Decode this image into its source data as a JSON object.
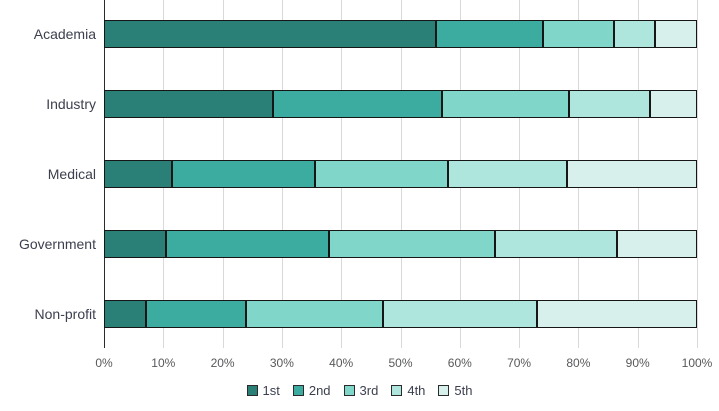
{
  "chart_data": {
    "type": "bar",
    "orientation": "horizontal",
    "stacked": true,
    "title": "",
    "categories": [
      "Academia",
      "Industry",
      "Medical",
      "Government",
      "Non-profit"
    ],
    "series": [
      {
        "name": "1st",
        "color": "#2a7f77",
        "values": [
          56,
          28.5,
          11.5,
          10.5,
          7
        ]
      },
      {
        "name": "2nd",
        "color": "#3daca0",
        "values": [
          18,
          28.5,
          24,
          27.5,
          17
        ]
      },
      {
        "name": "3rd",
        "color": "#7fd6c9",
        "values": [
          12,
          21.5,
          22.5,
          28,
          23
        ]
      },
      {
        "name": "4th",
        "color": "#aee5dd",
        "values": [
          7,
          13.5,
          20,
          20.5,
          26
        ]
      },
      {
        "name": "5th",
        "color": "#d7f0eb",
        "values": [
          7,
          8,
          22,
          13.5,
          27
        ]
      }
    ],
    "x_tick_labels": [
      "0%",
      "10%",
      "20%",
      "30%",
      "40%",
      "50%",
      "60%",
      "70%",
      "80%",
      "90%",
      "100%"
    ],
    "xlim": [
      0,
      100
    ],
    "xlabel": "",
    "ylabel": "",
    "grid": "vertical",
    "legend_position": "bottom-center",
    "theme": {
      "background": "#ffffff",
      "gridline_color": "#d9d9d9",
      "axis_line_color": "#2b2b2b",
      "bar_border_color": "#161616",
      "category_label_color": "#3c3f4e",
      "tick_label_color": "#57585a",
      "legend_label_color": "#3c3f4e"
    }
  }
}
